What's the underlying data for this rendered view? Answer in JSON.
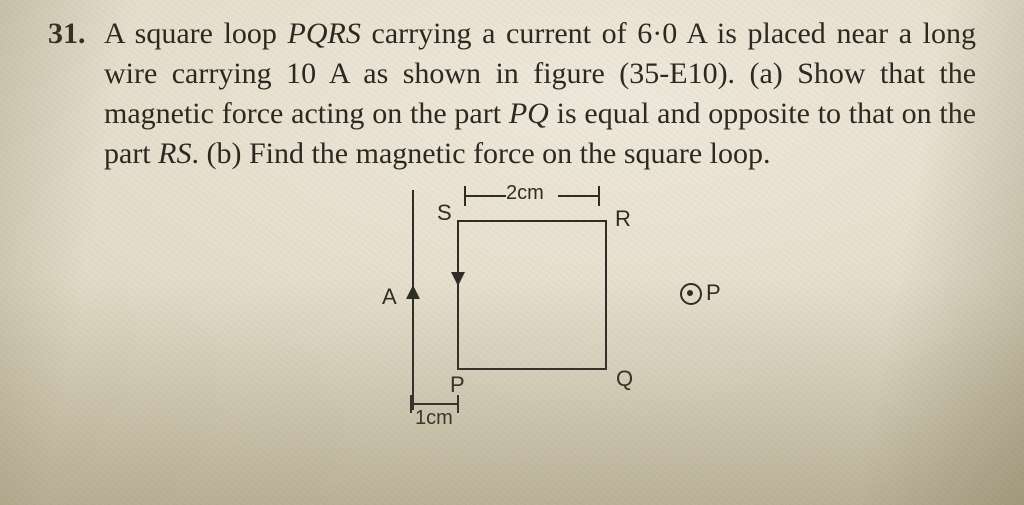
{
  "problem": {
    "number": "31.",
    "line1_a": "A square loop ",
    "loop_name": "PQRS",
    "line1_b": " carrying a current of ",
    "current_loop": "6·0 A",
    "line1_c": " is placed",
    "line2_a": "near a long wire carrying ",
    "current_wire": "10 A",
    "line2_b": " as shown in figure",
    "line3_a": "(35-E10). (a) Show that the magnetic force acting on the",
    "line4_a": "part ",
    "seg_pq": "PQ",
    "line4_b": " is equal and opposite to that on the part ",
    "seg_rs": "RS",
    "line4_c": ".",
    "line5": "(b) Find the magnetic force on the square loop."
  },
  "figure": {
    "label_A": "A",
    "label_S": "S",
    "label_R": "R",
    "label_P": "P",
    "label_Q": "Q",
    "dim_top": "2cm",
    "dim_bottom": "1cm",
    "odot_label": "P",
    "wire_current_A": 10,
    "loop_current_A": 6.0,
    "loop_side_cm": 2,
    "gap_cm": 1,
    "stroke_color": "#2f2c25",
    "label_font": "Arial",
    "label_fontsize_pt": 16
  },
  "style": {
    "body_font": "Georgia",
    "body_fontsize_pt": 22,
    "body_lineheight_pt": 30,
    "text_color": "#2c2922",
    "paper_light": "#efe9dc",
    "paper_mid": "#e4dcc9",
    "paper_dark": "#bcb195"
  }
}
